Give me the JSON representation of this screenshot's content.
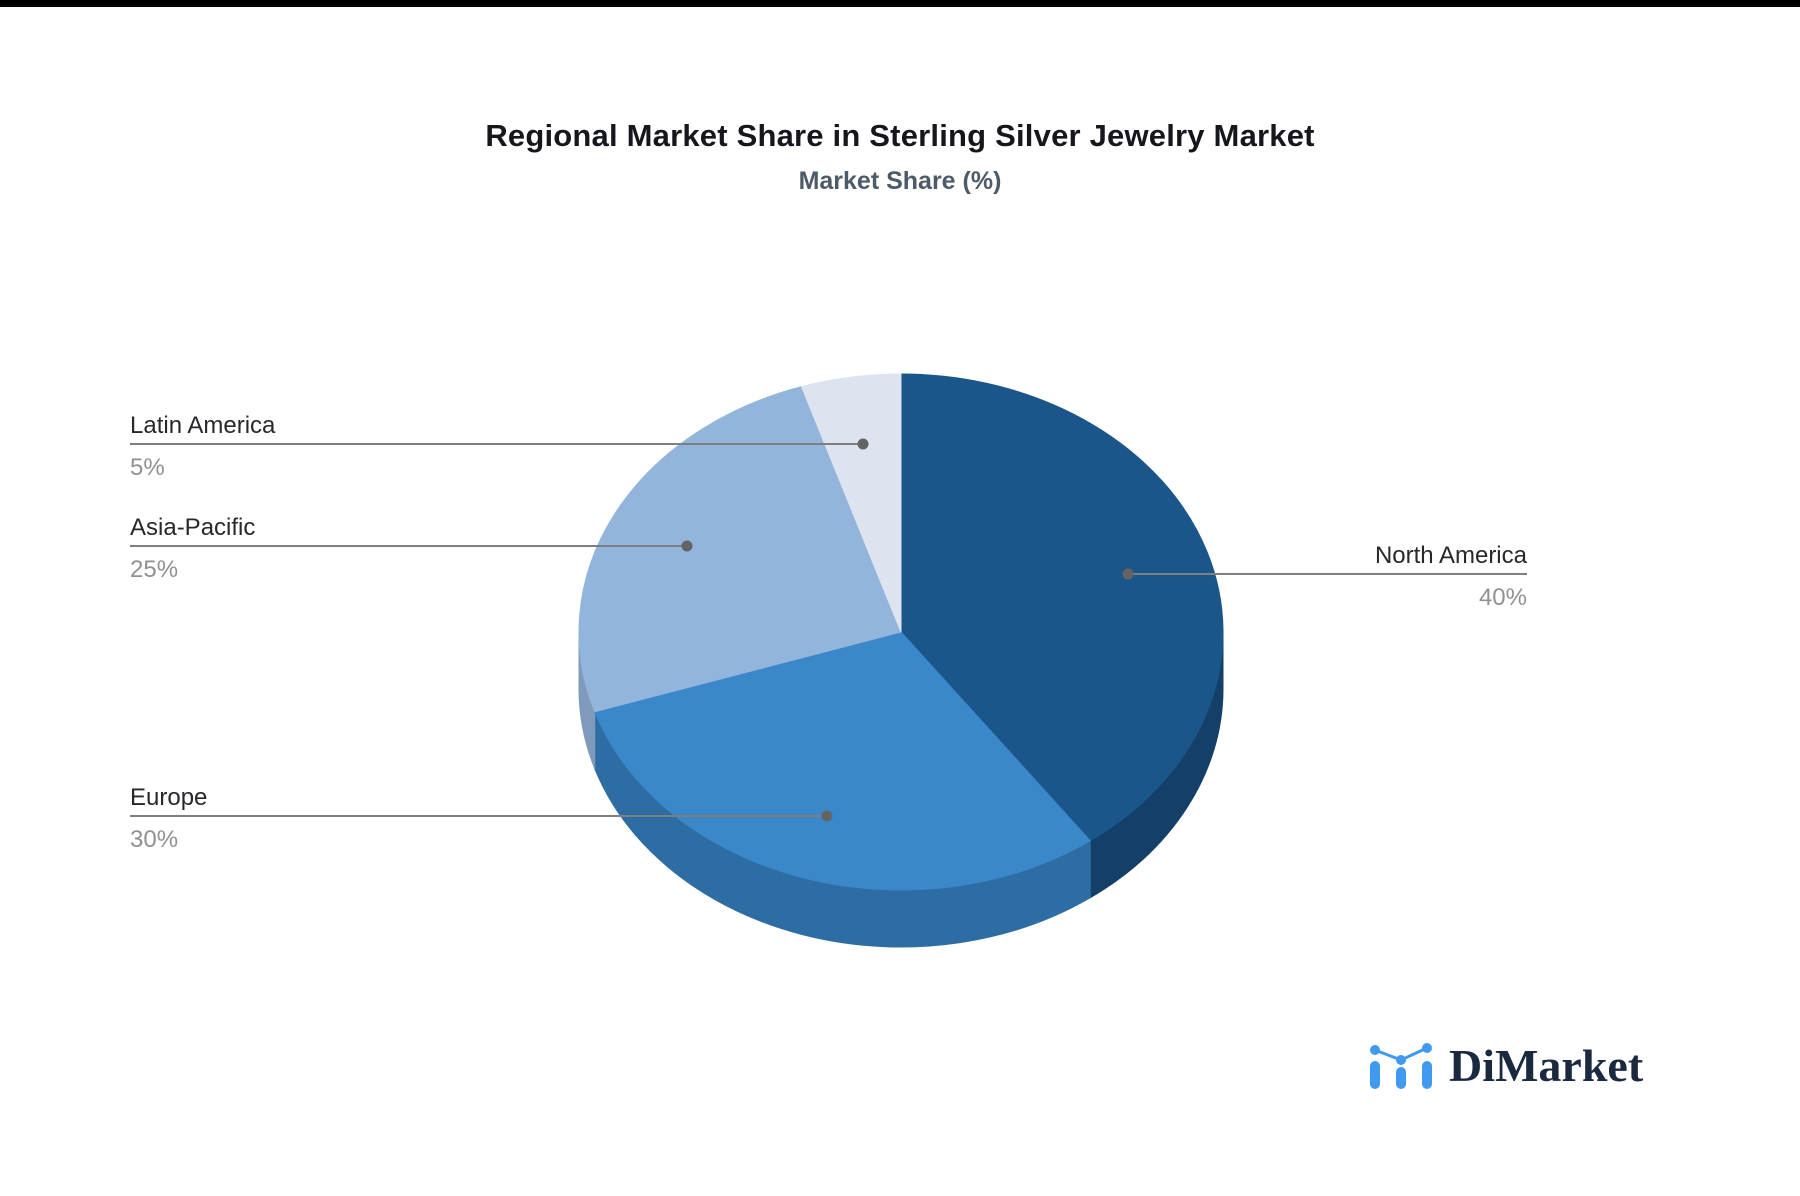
{
  "header": {
    "title": "Regional Market Share in Sterling Silver Jewelry Market",
    "subtitle": "Market Share (%)"
  },
  "chart_data": {
    "type": "pie",
    "style": "3d",
    "title": "Regional Market Share in Sterling Silver Jewelry Market",
    "subtitle": "Market Share (%)",
    "unit": "%",
    "start_angle_deg": 0,
    "direction": "clockwise",
    "legend_position": "none",
    "slices": [
      {
        "label": "North America",
        "value": 40,
        "display": "40%",
        "color": "#1b568b",
        "side_color": "#133f68",
        "label_side": "right"
      },
      {
        "label": "Europe",
        "value": 30,
        "display": "30%",
        "color": "#3a87c9",
        "side_color": "#2e6da3",
        "label_side": "left"
      },
      {
        "label": "Asia-Pacific",
        "value": 25,
        "display": "25%",
        "color": "#93b5db",
        "side_color": "#7f9aba",
        "label_side": "left"
      },
      {
        "label": "Latin America",
        "value": 5,
        "display": "5%",
        "color": "#dde4ef",
        "side_color": "#b9c5d9",
        "label_side": "left"
      }
    ],
    "label_name_color": "#26282c",
    "label_value_color": "#919191",
    "label_line_color": "#7f7f7f",
    "label_dot_color": "#646464"
  },
  "branding": {
    "name": "DiMarket",
    "icon": "bar-chart-logo-icon",
    "icon_color": "#3f9af0",
    "text_color": "#1b2940"
  }
}
